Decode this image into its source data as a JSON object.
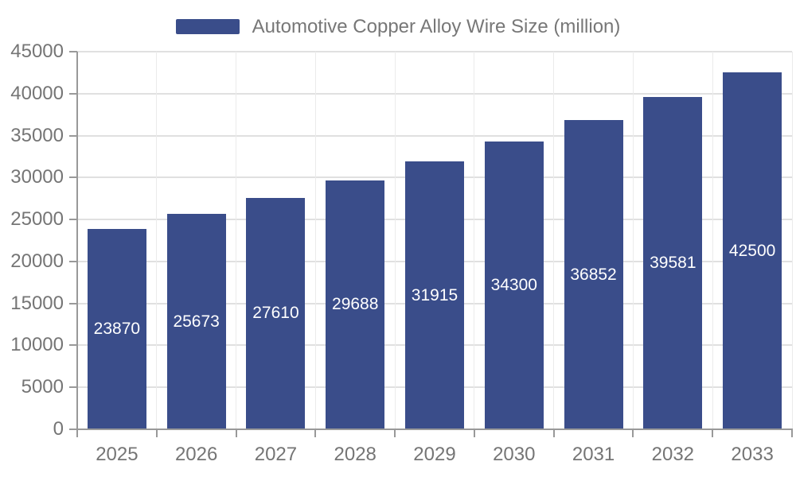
{
  "legend": {
    "label": "Automotive Copper Alloy Wire Size (million)"
  },
  "chart_data": {
    "type": "bar",
    "title": "Automotive Copper Alloy Wire Size (million)",
    "categories": [
      "2025",
      "2026",
      "2027",
      "2028",
      "2029",
      "2030",
      "2031",
      "2032",
      "2033"
    ],
    "values": [
      23870,
      25673,
      27610,
      29688,
      31915,
      34300,
      36852,
      39581,
      42500
    ],
    "xlabel": "",
    "ylabel": "",
    "ylim": [
      0,
      45000
    ],
    "ytick_step": 5000,
    "yticks": [
      0,
      5000,
      10000,
      15000,
      20000,
      25000,
      30000,
      35000,
      40000,
      45000
    ],
    "grid": true,
    "legend_position": "top-center",
    "value_labels": "inside-center",
    "colors": {
      "bar": "#3A4D8A",
      "bar_label": "#FFFFFF",
      "axis_text": "#757575",
      "legend_text": "#777777",
      "grid_h": "#E0E0E0",
      "grid_v": "#EBEBEB",
      "axis_line": "#999999",
      "background": "#FFFFFF"
    }
  }
}
